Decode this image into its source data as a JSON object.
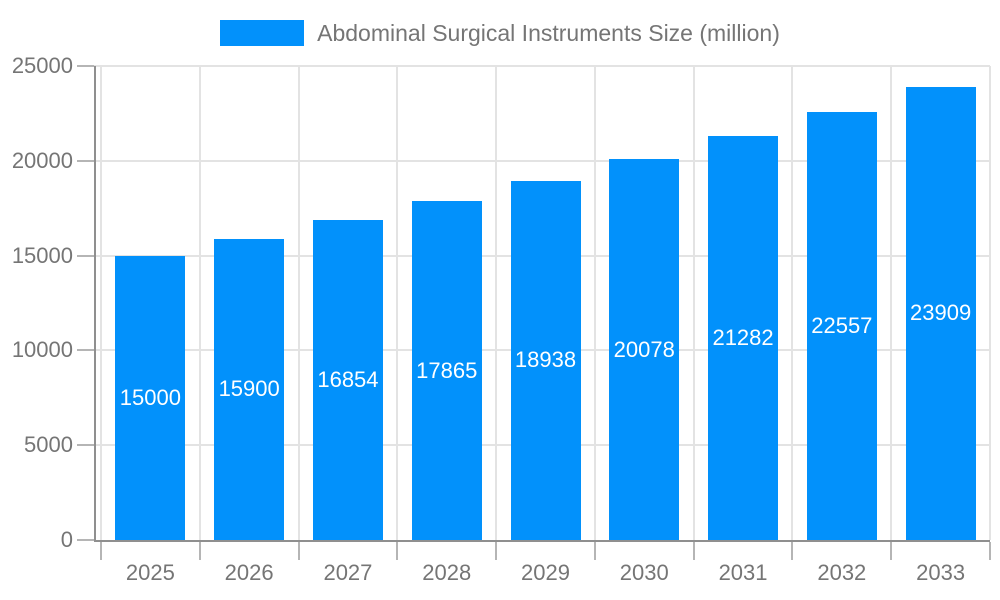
{
  "chart_data": {
    "type": "bar",
    "title": "Abdominal Surgical Instruments Size (million)",
    "xlabel": "",
    "ylabel": "",
    "categories": [
      "2025",
      "2026",
      "2027",
      "2028",
      "2029",
      "2030",
      "2031",
      "2032",
      "2033"
    ],
    "values": [
      15000,
      15900,
      16854,
      17865,
      18938,
      20078,
      21282,
      22557,
      23909
    ],
    "ylim": [
      0,
      25000
    ],
    "yticks": [
      0,
      5000,
      10000,
      15000,
      20000,
      25000
    ],
    "grid": true,
    "legend_position": "top",
    "value_labels": "centered-inside-bars",
    "colors": {
      "bar": "#0291fb",
      "value_label": "#ffffff",
      "axis_label": "#757575",
      "legend_text": "#757575",
      "gridline": "#e3e3e3",
      "axis_line": "#8f8f8f",
      "tick": "#b5b5b5",
      "background": "#ffffff"
    }
  }
}
